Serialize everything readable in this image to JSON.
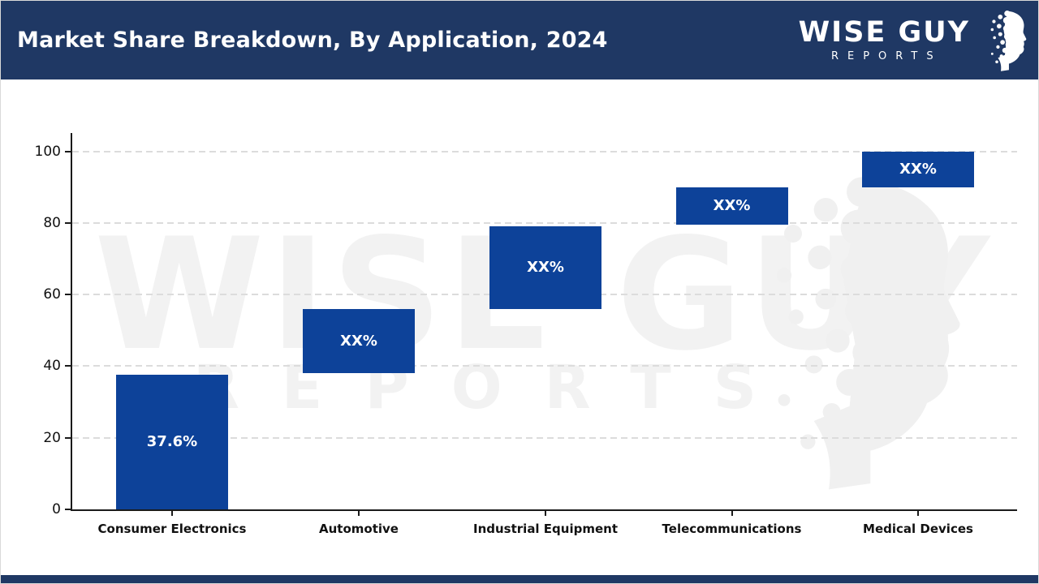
{
  "header": {
    "title": "Market Share Breakdown, By Application, 2024",
    "logo": {
      "line1": "WISE GUY",
      "line2": "REPORTS",
      "icon": "dotted-head-profile"
    }
  },
  "watermark": {
    "line1": "WISE GUY",
    "line2": "REPORTS",
    "icon": "dotted-head-profile"
  },
  "colors": {
    "header_bg": "#1f3864",
    "bar": "#0d4299",
    "grid": "#dcdcdc",
    "axis": "#1a1a1a",
    "bar_label_text": "#ffffff",
    "watermark": "#f2f2f2"
  },
  "chart_data": {
    "type": "bar",
    "subtype": "floating-segment-waterfall",
    "title": "Market Share Breakdown, By Application, 2024",
    "categories": [
      "Consumer Electronics",
      "Automotive",
      "Industrial Equipment",
      "Telecommunications",
      "Medical Devices"
    ],
    "bars": [
      {
        "category": "Consumer Electronics",
        "start": 0,
        "end": 37.6,
        "label": "37.6%"
      },
      {
        "category": "Automotive",
        "start": 38,
        "end": 56,
        "label": "XX%"
      },
      {
        "category": "Industrial Equipment",
        "start": 56,
        "end": 79,
        "label": "XX%"
      },
      {
        "category": "Telecommunications",
        "start": 79.5,
        "end": 90,
        "label": "XX%"
      },
      {
        "category": "Medical Devices",
        "start": 90,
        "end": 100,
        "label": "XX%"
      }
    ],
    "xlabel": "",
    "ylabel": "",
    "ylim": [
      0,
      100
    ],
    "yticks": [
      0,
      20,
      40,
      60,
      80,
      100
    ],
    "grid": "horizontal-dashed",
    "legend": "none",
    "bar_color": "#0d4299"
  }
}
